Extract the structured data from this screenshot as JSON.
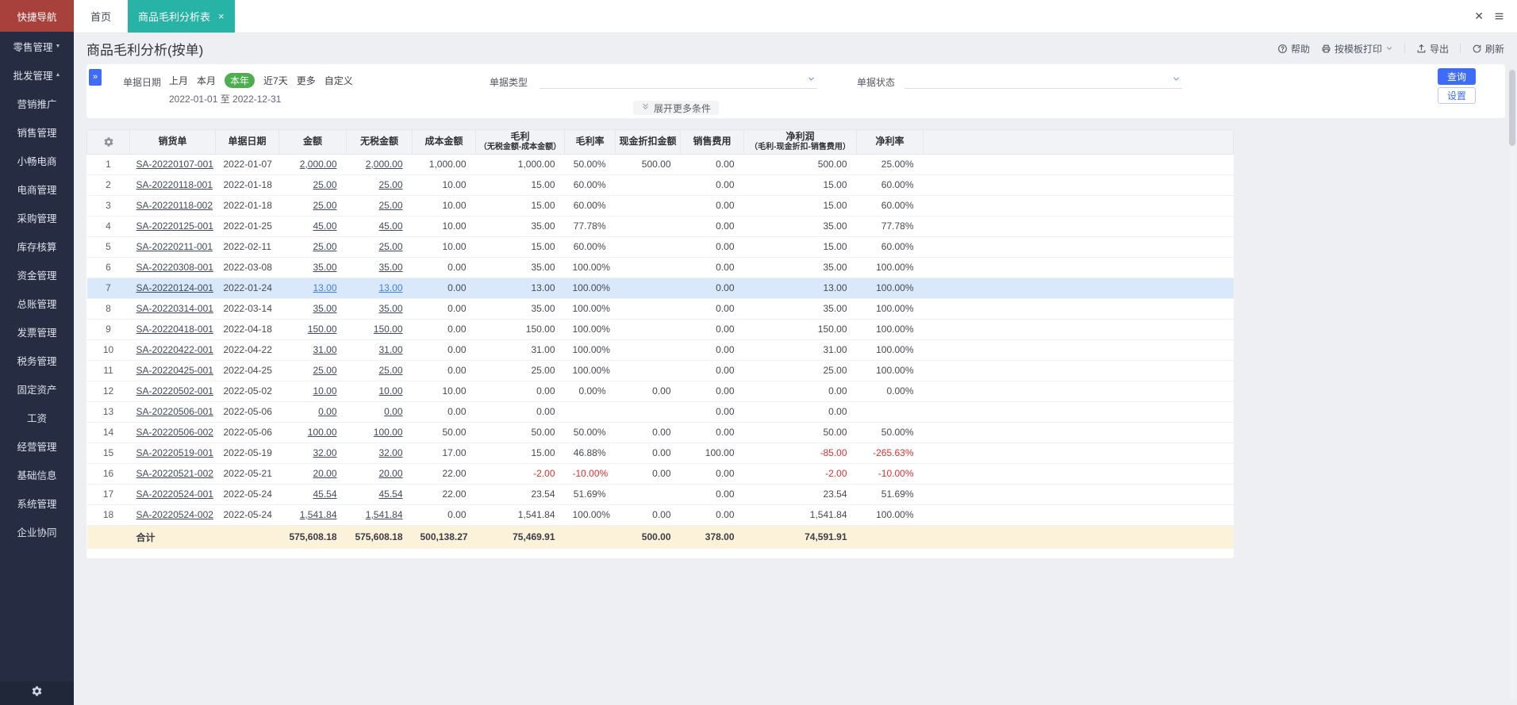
{
  "icons": {
    "tab_close": "×",
    "window_close": "✕",
    "collapse_handle": "»",
    "menu_arrow_up": "▲",
    "menu_arrow_down": "▼"
  },
  "colors": {
    "accent_blue": "#3f6cf6",
    "active_tab_teal": "#27b3a5",
    "selected_pill_green": "#4cae4f",
    "negative_red": "#e02e2e",
    "sidebar_bg": "#262d42",
    "quick_nav_red": "#a8413c",
    "highlight_row_blue": "#d9e8fb",
    "total_row_cream": "#fcf1d9"
  },
  "sidebar": {
    "quick_nav": "快捷导航",
    "items": [
      {
        "label": "零售管理",
        "arrow": "down"
      },
      {
        "label": "批发管理",
        "arrow": "up"
      },
      {
        "label": "营销推广",
        "sub": true
      },
      {
        "label": "销售管理",
        "sub": true
      },
      {
        "label": "小畅电商"
      },
      {
        "label": "电商管理"
      },
      {
        "label": "采购管理"
      },
      {
        "label": "库存核算"
      },
      {
        "label": "资金管理"
      },
      {
        "label": "总账管理"
      },
      {
        "label": "发票管理"
      },
      {
        "label": "税务管理"
      },
      {
        "label": "固定资产"
      },
      {
        "label": "工资"
      },
      {
        "label": "经营管理"
      },
      {
        "label": "基础信息"
      },
      {
        "label": "系统管理"
      },
      {
        "label": "企业协同"
      }
    ]
  },
  "tabs": {
    "home": "首页",
    "active": "商品毛利分析表"
  },
  "header": {
    "title": "商品毛利分析(按单)",
    "help": "帮助",
    "print": "按模板打印",
    "export": "导出",
    "refresh": "刷新"
  },
  "filters": {
    "date_label": "单据日期",
    "quick_options": [
      "上月",
      "本月",
      "本年",
      "近7天",
      "更多",
      "自定义"
    ],
    "selected_quick": "本年",
    "date_range": "2022-01-01 至 2022-12-31",
    "doc_type_label": "单据类型",
    "doc_status_label": "单据状态",
    "expand_more": "展开更多条件",
    "search_button": "查询",
    "settings_button": "设置"
  },
  "table": {
    "columns": [
      "销货单",
      "单据日期",
      "金额",
      "无税金额",
      "成本金额",
      "毛利\n（无税金额-成本金额）",
      "毛利率",
      "现金折扣金额",
      "销售费用",
      "净利润\n（毛利-现金折扣-销售费用）",
      "净利率"
    ],
    "rows": [
      {
        "n": "1",
        "order": "SA-20220107-001",
        "date": "2022-01-07",
        "amount": "2,000.00",
        "tax_free": "2,000.00",
        "cost": "1,000.00",
        "gross": "1,000.00",
        "gross_rate": "50.00%",
        "cash_discount": "500.00",
        "expense": "0.00",
        "net": "500.00",
        "net_rate": "25.00%"
      },
      {
        "n": "2",
        "order": "SA-20220118-001",
        "date": "2022-01-18",
        "amount": "25.00",
        "tax_free": "25.00",
        "cost": "10.00",
        "gross": "15.00",
        "gross_rate": "60.00%",
        "cash_discount": "",
        "expense": "0.00",
        "net": "15.00",
        "net_rate": "60.00%"
      },
      {
        "n": "3",
        "order": "SA-20220118-002",
        "date": "2022-01-18",
        "amount": "25.00",
        "tax_free": "25.00",
        "cost": "10.00",
        "gross": "15.00",
        "gross_rate": "60.00%",
        "cash_discount": "",
        "expense": "0.00",
        "net": "15.00",
        "net_rate": "60.00%"
      },
      {
        "n": "4",
        "order": "SA-20220125-001",
        "date": "2022-01-25",
        "amount": "45.00",
        "tax_free": "45.00",
        "cost": "10.00",
        "gross": "35.00",
        "gross_rate": "77.78%",
        "cash_discount": "",
        "expense": "0.00",
        "net": "35.00",
        "net_rate": "77.78%"
      },
      {
        "n": "5",
        "order": "SA-20220211-001",
        "date": "2022-02-11",
        "amount": "25.00",
        "tax_free": "25.00",
        "cost": "10.00",
        "gross": "15.00",
        "gross_rate": "60.00%",
        "cash_discount": "",
        "expense": "0.00",
        "net": "15.00",
        "net_rate": "60.00%"
      },
      {
        "n": "6",
        "order": "SA-20220308-001",
        "date": "2022-03-08",
        "amount": "35.00",
        "tax_free": "35.00",
        "cost": "0.00",
        "gross": "35.00",
        "gross_rate": "100.00%",
        "cash_discount": "",
        "expense": "0.00",
        "net": "35.00",
        "net_rate": "100.00%"
      },
      {
        "n": "7",
        "order": "SA-20220124-001",
        "date": "2022-01-24",
        "amount": "13.00",
        "tax_free": "13.00",
        "cost": "0.00",
        "gross": "13.00",
        "gross_rate": "100.00%",
        "cash_discount": "",
        "expense": "0.00",
        "net": "13.00",
        "net_rate": "100.00%",
        "highlight": true
      },
      {
        "n": "8",
        "order": "SA-20220314-001",
        "date": "2022-03-14",
        "amount": "35.00",
        "tax_free": "35.00",
        "cost": "0.00",
        "gross": "35.00",
        "gross_rate": "100.00%",
        "cash_discount": "",
        "expense": "0.00",
        "net": "35.00",
        "net_rate": "100.00%"
      },
      {
        "n": "9",
        "order": "SA-20220418-001",
        "date": "2022-04-18",
        "amount": "150.00",
        "tax_free": "150.00",
        "cost": "0.00",
        "gross": "150.00",
        "gross_rate": "100.00%",
        "cash_discount": "",
        "expense": "0.00",
        "net": "150.00",
        "net_rate": "100.00%"
      },
      {
        "n": "10",
        "order": "SA-20220422-001",
        "date": "2022-04-22",
        "amount": "31.00",
        "tax_free": "31.00",
        "cost": "0.00",
        "gross": "31.00",
        "gross_rate": "100.00%",
        "cash_discount": "",
        "expense": "0.00",
        "net": "31.00",
        "net_rate": "100.00%"
      },
      {
        "n": "11",
        "order": "SA-20220425-001",
        "date": "2022-04-25",
        "amount": "25.00",
        "tax_free": "25.00",
        "cost": "0.00",
        "gross": "25.00",
        "gross_rate": "100.00%",
        "cash_discount": "",
        "expense": "0.00",
        "net": "25.00",
        "net_rate": "100.00%"
      },
      {
        "n": "12",
        "order": "SA-20220502-001",
        "date": "2022-05-02",
        "amount": "10.00",
        "tax_free": "10.00",
        "cost": "10.00",
        "gross": "0.00",
        "gross_rate": "0.00%",
        "cash_discount": "0.00",
        "expense": "0.00",
        "net": "0.00",
        "net_rate": "0.00%"
      },
      {
        "n": "13",
        "order": "SA-20220506-001",
        "date": "2022-05-06",
        "amount": "0.00",
        "tax_free": "0.00",
        "cost": "0.00",
        "gross": "0.00",
        "gross_rate": "",
        "cash_discount": "",
        "expense": "0.00",
        "net": "0.00",
        "net_rate": ""
      },
      {
        "n": "14",
        "order": "SA-20220506-002",
        "date": "2022-05-06",
        "amount": "100.00",
        "tax_free": "100.00",
        "cost": "50.00",
        "gross": "50.00",
        "gross_rate": "50.00%",
        "cash_discount": "0.00",
        "expense": "0.00",
        "net": "50.00",
        "net_rate": "50.00%"
      },
      {
        "n": "15",
        "order": "SA-20220519-001",
        "date": "2022-05-19",
        "amount": "32.00",
        "tax_free": "32.00",
        "cost": "17.00",
        "gross": "15.00",
        "gross_rate": "46.88%",
        "cash_discount": "0.00",
        "expense": "100.00",
        "net": "-85.00",
        "net_rate": "-265.63%"
      },
      {
        "n": "16",
        "order": "SA-20220521-002",
        "date": "2022-05-21",
        "amount": "20.00",
        "tax_free": "20.00",
        "cost": "22.00",
        "gross": "-2.00",
        "gross_rate": "-10.00%",
        "cash_discount": "0.00",
        "expense": "0.00",
        "net": "-2.00",
        "net_rate": "-10.00%"
      },
      {
        "n": "17",
        "order": "SA-20220524-001",
        "date": "2022-05-24",
        "amount": "45.54",
        "tax_free": "45.54",
        "cost": "22.00",
        "gross": "23.54",
        "gross_rate": "51.69%",
        "cash_discount": "",
        "expense": "0.00",
        "net": "23.54",
        "net_rate": "51.69%"
      },
      {
        "n": "18",
        "order": "SA-20220524-002",
        "date": "2022-05-24",
        "amount": "1,541.84",
        "tax_free": "1,541.84",
        "cost": "0.00",
        "gross": "1,541.84",
        "gross_rate": "100.00%",
        "cash_discount": "0.00",
        "expense": "0.00",
        "net": "1,541.84",
        "net_rate": "100.00%"
      }
    ],
    "total": {
      "label": "合计",
      "amount": "575,608.18",
      "tax_free": "575,608.18",
      "cost": "500,138.27",
      "gross": "75,469.91",
      "gross_rate": "",
      "cash_discount": "500.00",
      "expense": "378.00",
      "net": "74,591.91",
      "net_rate": ""
    }
  }
}
